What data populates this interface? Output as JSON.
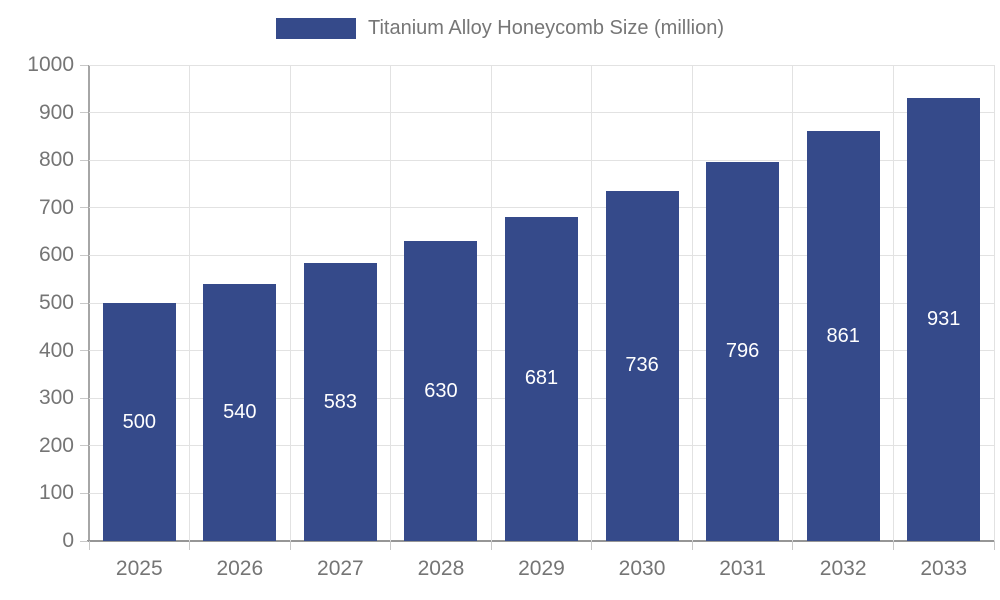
{
  "chart_data": {
    "type": "bar",
    "title": "",
    "legend": "Titanium Alloy Honeycomb Size (million)",
    "legend_position": "top",
    "categories": [
      "2025",
      "2026",
      "2027",
      "2028",
      "2029",
      "2030",
      "2031",
      "2032",
      "2033"
    ],
    "values": [
      500,
      540,
      583,
      630,
      681,
      736,
      796,
      861,
      931
    ],
    "xlabel": "",
    "ylabel": "",
    "ylim": [
      0,
      1000
    ],
    "ytick_step": 100,
    "y_tick_labels": [
      "0",
      "100",
      "200",
      "300",
      "400",
      "500",
      "600",
      "700",
      "800",
      "900",
      "1000"
    ],
    "grid": true,
    "colors": {
      "bar": "#354A8A",
      "value_label": "#FFFFFF",
      "axis_text": "#757575",
      "legend_text": "#767676",
      "gridline": "#E2E2E2",
      "axis_line_x": "#969696",
      "axis_line_y": "#A6A6A6",
      "tick": "#C8C8C8",
      "background": "#FFFFFF"
    }
  }
}
